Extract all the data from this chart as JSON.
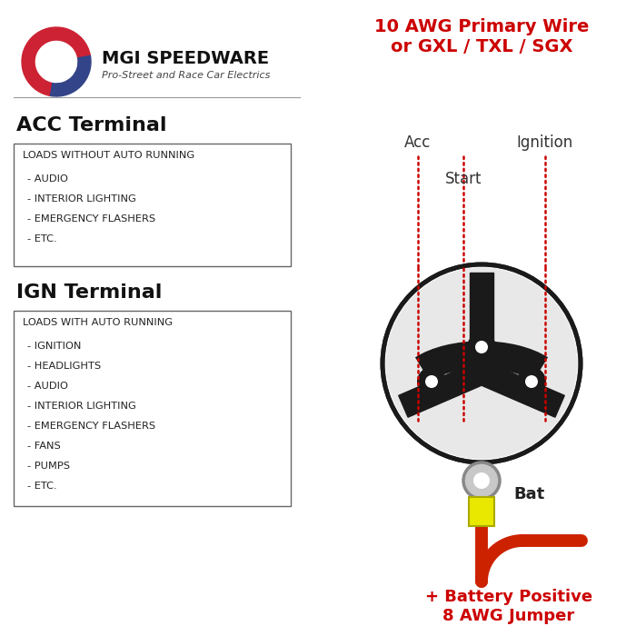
{
  "bg_color": "#ffffff",
  "title_wire": "10 AWG Primary Wire\nor GXL / TXL / SGX",
  "title_wire_color": "#cc0000",
  "title_wire_fontsize": 14,
  "brand_name": "MGI SPEEDWARE",
  "brand_sub": "Pro-Street and Race Car Electrics",
  "acc_terminal_title": "ACC Terminal",
  "acc_box_line1": "LOADS WITHOUT AUTO RUNNING",
  "acc_box_items": [
    "- AUDIO",
    "- INTERIOR LIGHTING",
    "- EMERGENCY FLASHERS",
    "- ETC."
  ],
  "ign_terminal_title": "IGN Terminal",
  "ign_box_line1": "LOADS WITH AUTO RUNNING",
  "ign_box_items": [
    "- IGNITION",
    "- HEADLIGHTS",
    "- AUDIO",
    "- INTERIOR LIGHTING",
    "- EMERGENCY FLASHERS",
    "- FANS",
    "- PUMPS",
    "- ETC."
  ],
  "label_acc": "Acc",
  "label_start": "Start",
  "label_ignition": "Ignition",
  "label_bat": "Bat",
  "label_battery_positive": "+ Battery Positive\n8 AWG Jumper",
  "label_battery_color": "#cc0000",
  "dotted_line_color": "#cc0000",
  "wire_color": "#cc2200",
  "yellow_connector_color": "#e8e800",
  "dark_color": "#1a1a1a",
  "light_gray": "#e0e0e0",
  "medium_gray": "#aaaaaa"
}
